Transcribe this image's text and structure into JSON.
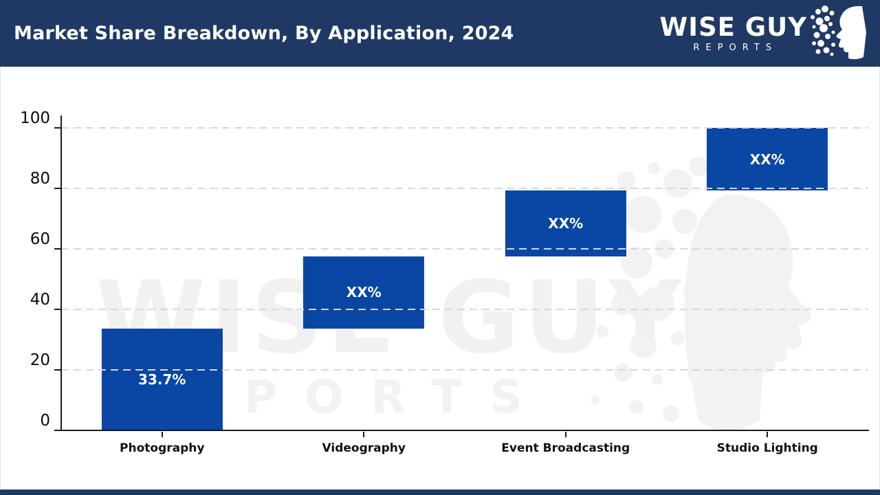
{
  "header": {
    "title": "Market Share Breakdown, By Application, 2024",
    "logo": {
      "line1": "WISE GUY",
      "line2": "REPORTS"
    }
  },
  "watermark": {
    "line1": "WISE GUY",
    "line2": "REPORTS"
  },
  "colors": {
    "header_bg": "#1f3864",
    "footer_bg": "#1f3864",
    "bar": "#0a46a3",
    "bar_label": "#ffffff",
    "grid": "#d8d8d8",
    "axis": "#1a1a1a",
    "watermark": "#f1f1f1"
  },
  "chart_data": {
    "type": "bar",
    "subtype": "waterfall",
    "title": "Market Share Breakdown, By Application, 2024",
    "categories": [
      "Photography",
      "Videography",
      "Event Broadcasting",
      "Studio Lighting"
    ],
    "segments": [
      {
        "category": "Photography",
        "start": 0,
        "end": 33.7,
        "label": "33.7%"
      },
      {
        "category": "Videography",
        "start": 33.7,
        "end": 57.5,
        "label": "XX%"
      },
      {
        "category": "Event Broadcasting",
        "start": 57.5,
        "end": 79.3,
        "label": "XX%"
      },
      {
        "category": "Studio Lighting",
        "start": 79.3,
        "end": 100,
        "label": "XX%"
      }
    ],
    "ylim": [
      0,
      100
    ],
    "yticks": [
      0,
      20,
      40,
      60,
      80,
      100
    ],
    "xlabel": "",
    "ylabel": "",
    "grid": "horizontal-dashed",
    "legend": false
  }
}
